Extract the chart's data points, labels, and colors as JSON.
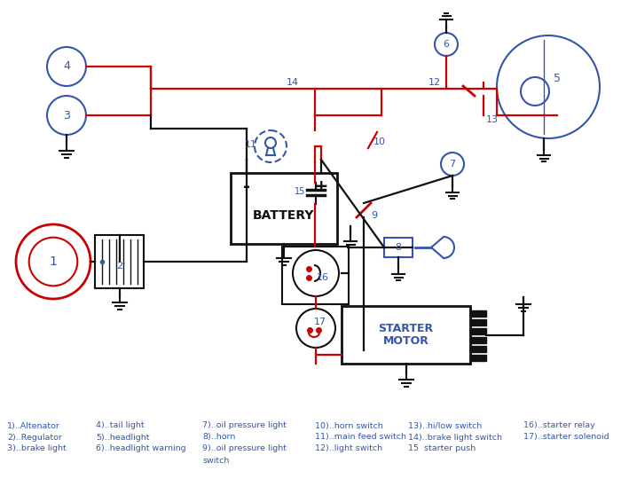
{
  "bg_color": "#ffffff",
  "wire_red": "#cc0000",
  "wire_black": "#111111",
  "wire_blue": "#3355aa",
  "legend": [
    [
      8,
      480,
      "1)..Altenator"
    ],
    [
      8,
      493,
      "2)..Regulator"
    ],
    [
      8,
      506,
      "3)..brake light"
    ],
    [
      108,
      480,
      "4)..tail light"
    ],
    [
      108,
      493,
      "5)..headlight"
    ],
    [
      108,
      506,
      "6)..headlight warning"
    ],
    [
      228,
      480,
      "7)..oil pressure light"
    ],
    [
      228,
      493,
      "8)..horn"
    ],
    [
      228,
      506,
      "9)..oil pressure light"
    ],
    [
      228,
      519,
      "switch"
    ],
    [
      355,
      480,
      "10)..horn switch"
    ],
    [
      355,
      493,
      "11)..main feed switch"
    ],
    [
      355,
      506,
      "12)..light switch"
    ],
    [
      460,
      480,
      "13)..hi/low switch"
    ],
    [
      460,
      493,
      "14)..brake light switch"
    ],
    [
      460,
      506,
      "15  starter push"
    ],
    [
      590,
      480,
      "16)..starter relay"
    ],
    [
      590,
      493,
      "17)..starter solenoid"
    ]
  ]
}
